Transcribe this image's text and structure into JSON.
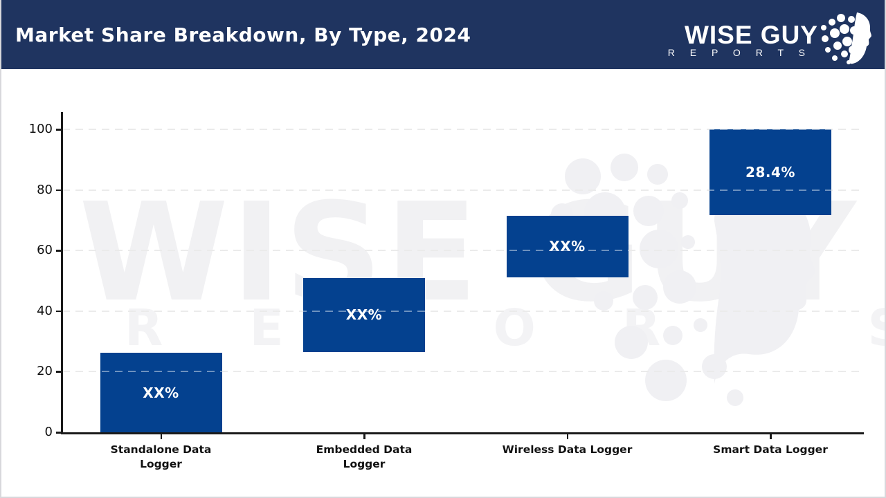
{
  "page": {
    "background": "#ffffff",
    "border_color": "#d8d8dc"
  },
  "header": {
    "background": "#1f3460",
    "title": "Market Share Breakdown, By Type, 2024",
    "logo": {
      "wordmark": "WISE GUY",
      "reports": "R E P O R T S",
      "head_icon": "dotted-face-profile"
    }
  },
  "watermark": {
    "wordmark": "WISE GUY",
    "reports": "R E P O R T S",
    "color": "#f1f1f3"
  },
  "chart_data": {
    "type": "bar",
    "subtype": "waterfall",
    "title": "Market Share Breakdown, By Type, 2024",
    "categories": [
      "Standalone Data Logger",
      "Embedded Data Logger",
      "Wireless Data Logger",
      "Smart Data Logger"
    ],
    "segments": [
      {
        "category": "Standalone Data Logger",
        "start": 0,
        "end": 26.2,
        "value": 26.2,
        "label": "XX%"
      },
      {
        "category": "Embedded Data Logger",
        "start": 26.5,
        "end": 51.0,
        "value": 24.5,
        "label": "XX%"
      },
      {
        "category": "Wireless Data Logger",
        "start": 51.2,
        "end": 71.5,
        "value": 20.3,
        "label": "XX%"
      },
      {
        "category": "Smart Data Logger",
        "start": 71.6,
        "end": 100,
        "value": 28.4,
        "label": "28.4%"
      }
    ],
    "xlabel": "",
    "ylabel": "",
    "ylim": [
      0,
      100
    ],
    "yticks": [
      0,
      20,
      40,
      60,
      80,
      100
    ],
    "grid": "horizontal-dashed",
    "legend": null,
    "bar_color": "#04418f",
    "bar_label_color": "#ffffff",
    "axis_color": "#1a1a1a",
    "gridline_color": "#dcdcdc"
  }
}
